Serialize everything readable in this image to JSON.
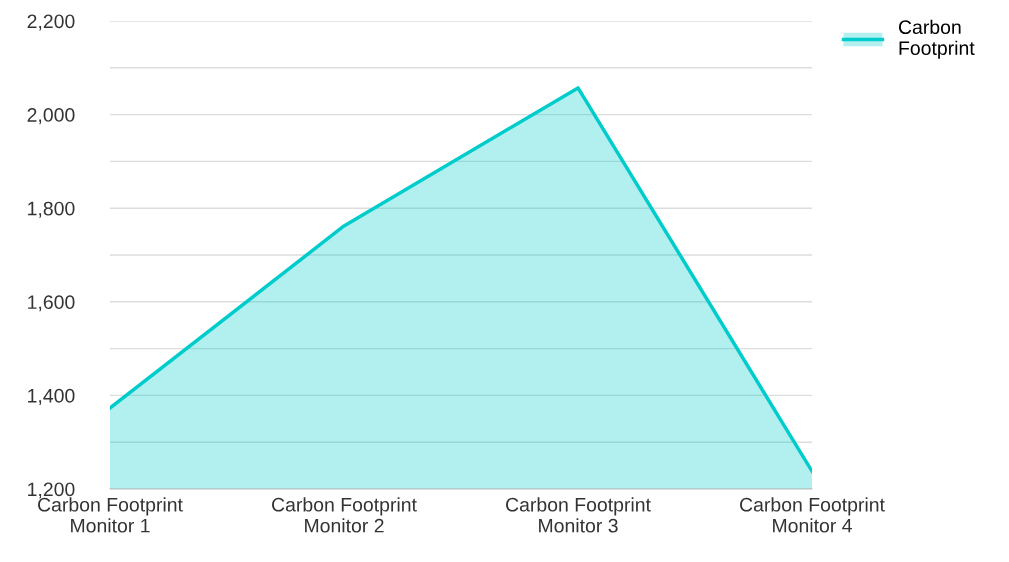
{
  "chart_data": {
    "type": "area",
    "categories": [
      "Carbon Footprint Monitor 1",
      "Carbon Footprint Monitor 2",
      "Carbon Footprint Monitor 3",
      "Carbon Footprint Monitor 4"
    ],
    "series": [
      {
        "name": "Carbon Footprint",
        "color": "#00cccc",
        "values": [
          1373,
          1762,
          2057,
          1238
        ]
      }
    ],
    "ylim": [
      1200,
      2200
    ],
    "yticks": [
      {
        "value": 1200,
        "label": "1,200"
      },
      {
        "value": 1300,
        "label": null
      },
      {
        "value": 1400,
        "label": "1,400"
      },
      {
        "value": 1500,
        "label": null
      },
      {
        "value": 1600,
        "label": "1,600"
      },
      {
        "value": 1700,
        "label": null
      },
      {
        "value": 1800,
        "label": "1,800"
      },
      {
        "value": 1900,
        "label": null
      },
      {
        "value": 2000,
        "label": "2,000"
      },
      {
        "value": 2100,
        "label": null
      },
      {
        "value": 2200,
        "label": "2,200"
      }
    ],
    "grid": "y",
    "legend": "top right",
    "marker": "none",
    "line_style": "solid"
  }
}
